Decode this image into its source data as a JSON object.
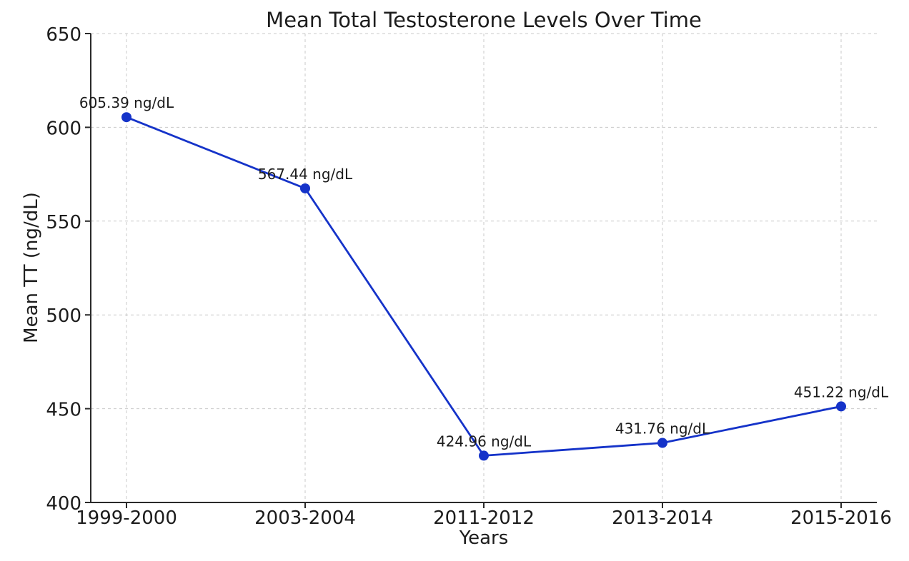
{
  "chart_data": {
    "type": "line",
    "title": "Mean Total Testosterone Levels Over Time",
    "xlabel": "Years",
    "ylabel": "Mean TT (ng/dL)",
    "categories": [
      "1999-2000",
      "2003-2004",
      "2011-2012",
      "2013-2014",
      "2015-2016"
    ],
    "values": [
      605.39,
      567.44,
      424.96,
      431.76,
      451.22
    ],
    "point_labels": [
      "605.39 ng/dL",
      "567.44 ng/dL",
      "424.96 ng/dL",
      "431.76 ng/dL",
      "451.22 ng/dL"
    ],
    "ylim": [
      400,
      650
    ],
    "yticks": [
      400,
      450,
      500,
      550,
      600,
      650
    ],
    "grid": true,
    "grid_style": "dashed",
    "legend_position": "none",
    "line_color": "#1533c9",
    "marker_color": "#1533c9",
    "grid_color": "#c9c9c9",
    "spine_color": "#2a2a2a",
    "text_color": "#1c1c1c",
    "background_color": "#ffffff"
  }
}
